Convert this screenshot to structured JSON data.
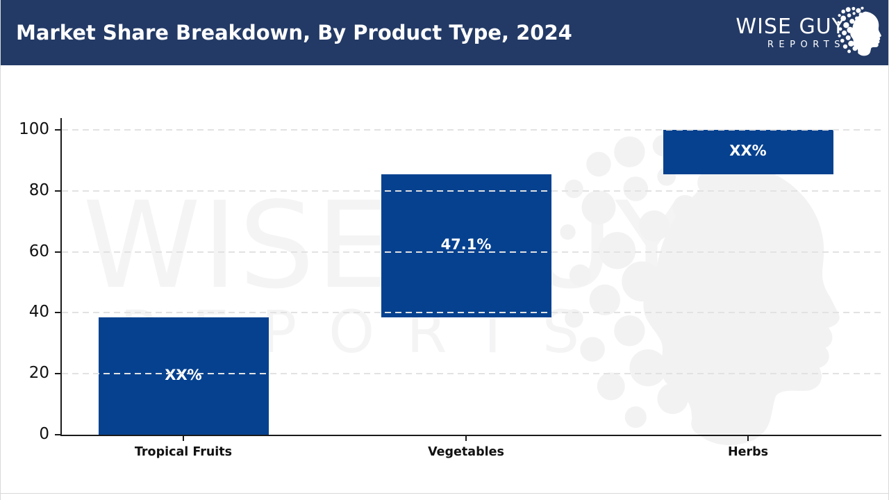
{
  "header": {
    "title": "Market Share Breakdown, By Product Type, 2024",
    "logo": {
      "line1": "WISE GUY",
      "line2": "REPORTS"
    }
  },
  "watermark": {
    "line1": "WISE GUY",
    "line2": "REPORTS"
  },
  "chart_data": {
    "type": "bar",
    "subtype": "floating-segment-bars (stacked market-share breakdown)",
    "title": "Market Share Breakdown, By Product Type, 2024",
    "categories": [
      "Tropical Fruits",
      "Vegetables",
      "Herbs"
    ],
    "bars": [
      {
        "category": "Tropical Fruits",
        "start": 0,
        "end": 38.4,
        "label": "XX%"
      },
      {
        "category": "Vegetables",
        "start": 38.4,
        "end": 85.5,
        "label": "47.1%"
      },
      {
        "category": "Herbs",
        "start": 85.5,
        "end": 100,
        "label": "XX%"
      }
    ],
    "xlabel": "",
    "ylabel": "",
    "ylim": [
      0,
      100
    ],
    "yticks": [
      0,
      20,
      40,
      60,
      80,
      100
    ],
    "grid": {
      "axis": "y",
      "style": "dashed",
      "drawn_over_bars": true
    },
    "legend": null
  },
  "colors": {
    "header_bg": "#233a66",
    "bar": "#05418f",
    "bar_label": "#ffffff",
    "grid": "#e2e2e2",
    "axis": "#1a1a1a",
    "watermark": "#f4f4f5",
    "border": "#d9d9d9"
  }
}
